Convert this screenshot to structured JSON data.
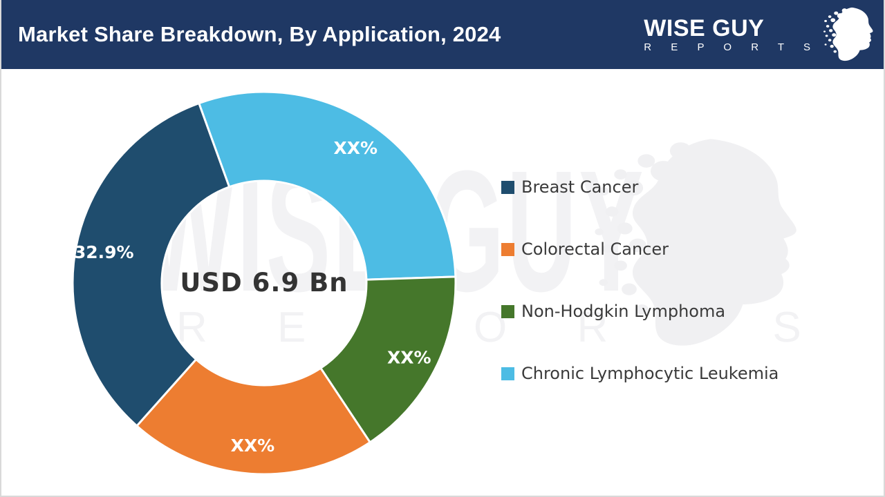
{
  "header": {
    "title": "Market Share Breakdown, By Application, 2024",
    "brand": {
      "line1": "WISE GUY",
      "line2": "R E P O R T S"
    }
  },
  "chart_data": {
    "type": "pie",
    "subtype": "donut",
    "title": "Market Share Breakdown, By Application, 2024",
    "center_label": "USD 6.9 Bn",
    "start_angle_deg_clockwise_from_top": 340.1,
    "direction": "clockwise",
    "inner_radius_ratio": 0.53,
    "slices_draw_order": [
      {
        "name": "Chronic Lymphocytic Leukemia",
        "value_pct": 30.0,
        "label": "XX%",
        "color": "#4DBCE4"
      },
      {
        "name": "Non-Hodgkin Lymphoma",
        "value_pct": 16.2,
        "label": "XX%",
        "color": "#45772B"
      },
      {
        "name": "Colorectal Cancer",
        "value_pct": 20.9,
        "label": "XX%",
        "color": "#ED7D31"
      },
      {
        "name": "Breast Cancer",
        "value_pct": 32.9,
        "label": "32.9%",
        "color": "#1F4D6E"
      }
    ],
    "legend": [
      {
        "name": "Breast Cancer",
        "color": "#1F4D6E"
      },
      {
        "name": "Colorectal Cancer",
        "color": "#ED7D31"
      },
      {
        "name": "Non-Hodgkin Lymphoma",
        "color": "#45772B"
      },
      {
        "name": "Chronic Lymphocytic Leukemia",
        "color": "#4DBCE4"
      }
    ],
    "legend_position": "right"
  },
  "watermark": {
    "line1": "WISE GUY",
    "line2": "R E P O R T S"
  },
  "colors": {
    "header_bg": "#1F3864",
    "page_border": "#D9D9D9",
    "title_text": "#FFFFFF",
    "slice_label": "#FFFFFF",
    "center_text": "#333333",
    "legend_text": "#3A3A3A",
    "watermark": "#F2F2F4",
    "slice_divider": "#FFFFFF"
  }
}
